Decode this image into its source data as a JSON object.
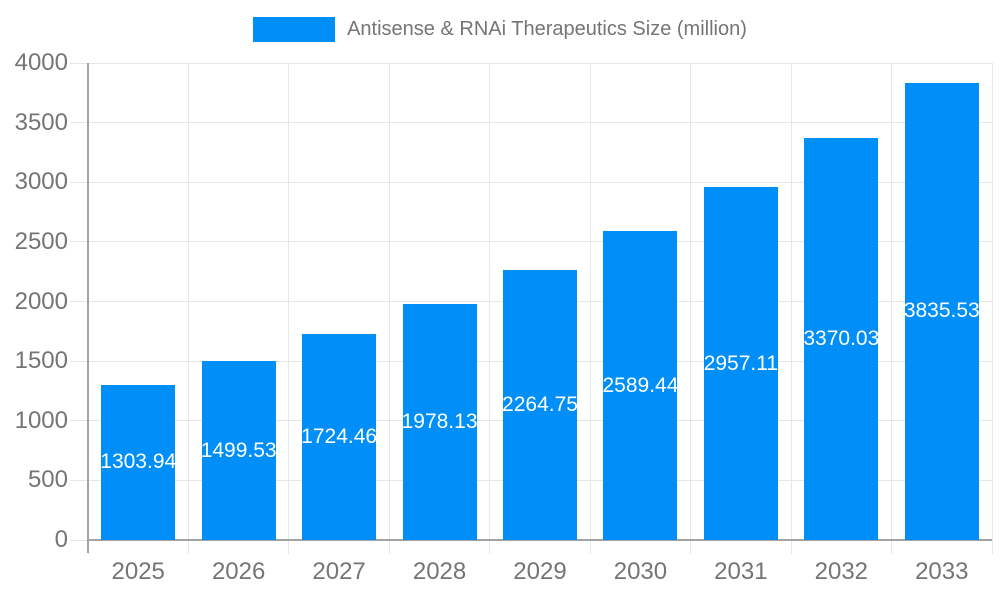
{
  "chart_data": {
    "type": "bar",
    "legend": "Antisense & RNAi Therapeutics Size (million)",
    "legend_position": "top",
    "categories": [
      "2025",
      "2026",
      "2027",
      "2028",
      "2029",
      "2030",
      "2031",
      "2032",
      "2033"
    ],
    "values": [
      1303.94,
      1499.53,
      1724.46,
      1978.13,
      2264.75,
      2589.44,
      2957.11,
      3370.03,
      3835.53
    ],
    "value_labels": [
      "1303.94",
      "1499.53",
      "1724.46",
      "1978.13",
      "2264.75",
      "2589.44",
      "2957.11",
      "3370.03",
      "3835.53"
    ],
    "xlabel": "",
    "ylabel": "",
    "ylim": [
      0,
      4000
    ],
    "ytick_step": 500,
    "ytick_labels": [
      "0",
      "500",
      "1000",
      "1500",
      "2000",
      "2500",
      "3000",
      "3500",
      "4000"
    ],
    "grid": "on",
    "colors": {
      "bar": "#008ff8",
      "gridline": "#e6e6e6",
      "axis_line": "#a3a3a3",
      "axis_text": "#757575",
      "bar_label_text": "#ffffff",
      "background": "#ffffff"
    }
  }
}
